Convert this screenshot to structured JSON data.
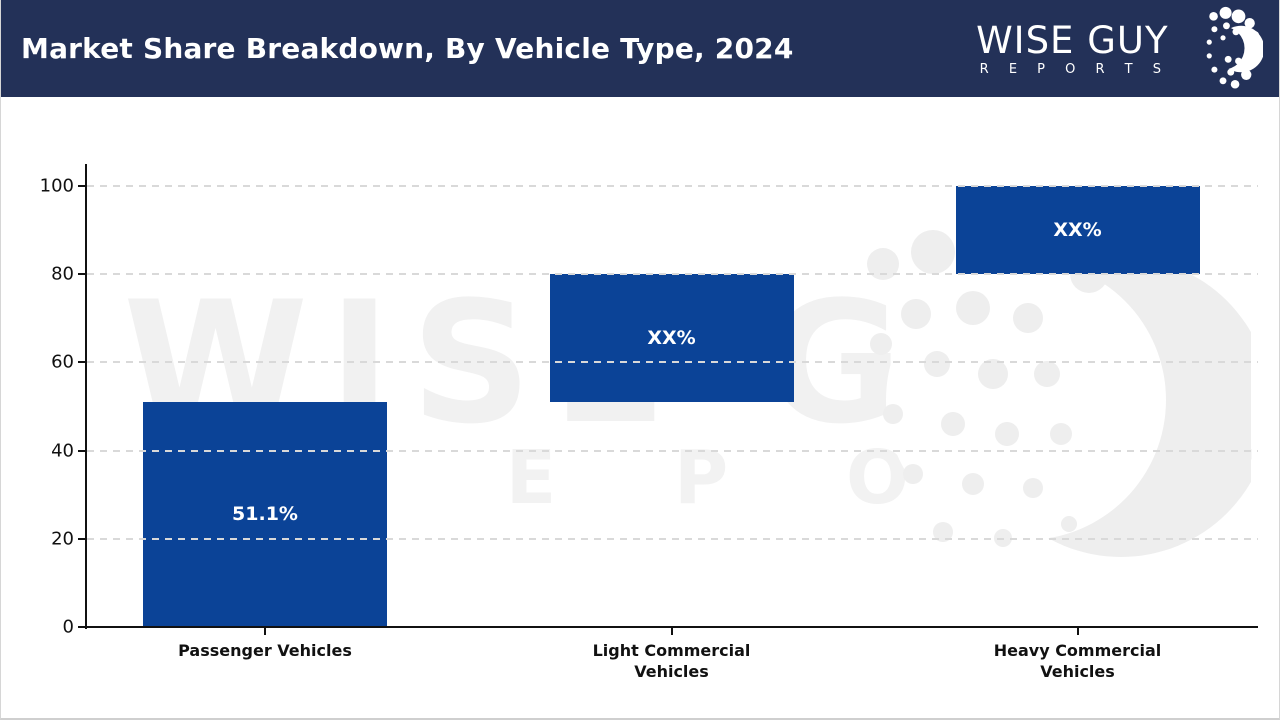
{
  "header": {
    "title": "Market Share Breakdown, By Vehicle Type, 2024",
    "background_color": "#233158",
    "logo": {
      "name": "WISE GUY",
      "subtitle": "REPORTS",
      "subtitle_display": "R E P O R T S",
      "icon": "dotted-face-profile",
      "color": "#ffffff"
    }
  },
  "watermark": {
    "line1": "WISE GUY",
    "line2": "R E P O R T S",
    "icon": "dotted-face-profile",
    "color": "#f1f1f1"
  },
  "chart_data": {
    "type": "bar",
    "subtype": "waterfall",
    "title": "Market Share Breakdown, By Vehicle Type, 2024",
    "categories": [
      "Passenger Vehicles",
      "Light Commercial\nVehicles",
      "Heavy Commercial\nVehicles"
    ],
    "segments": [
      {
        "category": "Passenger Vehicles",
        "start": 0,
        "end": 51.1,
        "label": "51.1%"
      },
      {
        "category": "Light Commercial Vehicles",
        "start": 51.1,
        "end": 80,
        "label": "XX%"
      },
      {
        "category": "Heavy Commercial Vehicles",
        "start": 80,
        "end": 100,
        "label": "XX%"
      }
    ],
    "bar_labels": [
      "51.1%",
      "XX%",
      "XX%"
    ],
    "yticks": [
      0,
      20,
      40,
      60,
      80,
      100
    ],
    "ylim": [
      0,
      105
    ],
    "xlabel": "",
    "ylabel": "",
    "legend": "none",
    "grid": "horizontal-dashed",
    "gridline_color": "#d9d9d9",
    "bar_color": "#0b4397",
    "bar_label_color": "#ffffff",
    "axis_color": "#111111"
  }
}
